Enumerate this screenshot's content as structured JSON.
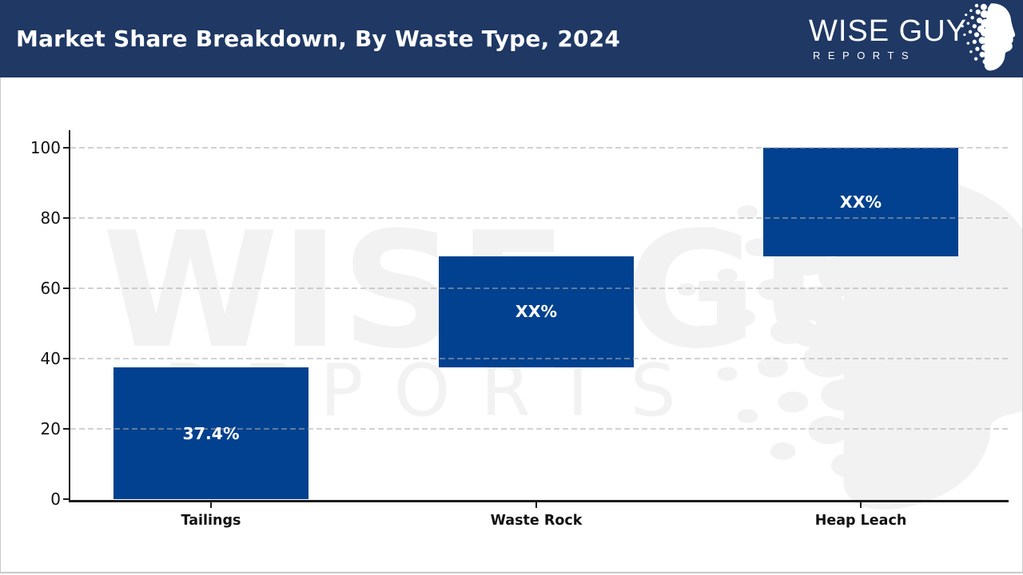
{
  "header": {
    "title": "Market Share Breakdown, By Waste Type, 2024",
    "logo": {
      "wordmark": "WISE GUY",
      "subtitle": "REPORTS"
    }
  },
  "watermark": {
    "wordmark": "WISE GUY",
    "subtitle": "REPORTS"
  },
  "chart_data": {
    "type": "bar",
    "variant": "floating-segment-bars",
    "title": "Market Share Breakdown, By Waste Type, 2024",
    "categories": [
      "Tailings",
      "Waste Rock",
      "Heap Leach"
    ],
    "segments": [
      {
        "category": "Tailings",
        "start": 0,
        "end": 37.4,
        "bar_label": "37.4%"
      },
      {
        "category": "Waste Rock",
        "start": 37.4,
        "end": 69.2,
        "bar_label": "XX%"
      },
      {
        "category": "Heap Leach",
        "start": 69.2,
        "end": 100,
        "bar_label": "XX%"
      }
    ],
    "ylim": [
      0,
      100
    ],
    "yticks": [
      0,
      20,
      40,
      60,
      80,
      100
    ],
    "xlabel": "",
    "ylabel": "",
    "grid": {
      "horizontal": true,
      "style": "dashed"
    },
    "legend": null,
    "colors": {
      "bar": "#02418f",
      "header_bg": "#1f3864",
      "bar_label": "#ffffff",
      "axis": "#1c1c1c",
      "tick_label": "#111111",
      "gridline": "#d9d9d9",
      "watermark": "#f2f2f2",
      "background": "#ffffff"
    }
  }
}
